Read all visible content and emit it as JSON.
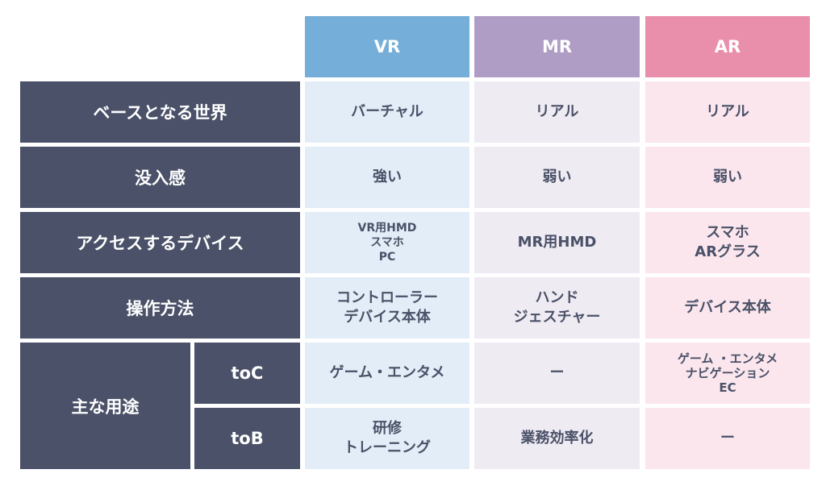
{
  "colors": {
    "label_bg": "#4a5168",
    "vr": "#74aed9",
    "mr": "#b09dc6",
    "ar": "#e98fab"
  },
  "headers": [
    "VR",
    "MR",
    "AR"
  ],
  "rows": [
    {
      "label": "ベースとなる世界",
      "vr": "バーチャル",
      "mr": "リアル",
      "ar": "リアル"
    },
    {
      "label": "没入感",
      "vr": "強い",
      "mr": "弱い",
      "ar": "弱い"
    },
    {
      "label": "アクセスするデバイス",
      "vr": "VR用HMD\nスマホ\nPC",
      "mr": "MR用HMD",
      "ar": "スマホ\nARグラス"
    },
    {
      "label": "操作方法",
      "vr": "コントローラー\nデバイス本体",
      "mr": "ハンド\nジェスチャー",
      "ar": "デバイス本体"
    }
  ],
  "usage": {
    "label": "主な用途",
    "toc": {
      "label": "toC",
      "vr": "ゲーム・エンタメ",
      "mr": "ー",
      "ar": "ゲーム ・エンタメ\nナビゲーション\nEC"
    },
    "tob": {
      "label": "toB",
      "vr": "研修\nトレーニング",
      "mr": "業務効率化",
      "ar": "ー"
    }
  }
}
